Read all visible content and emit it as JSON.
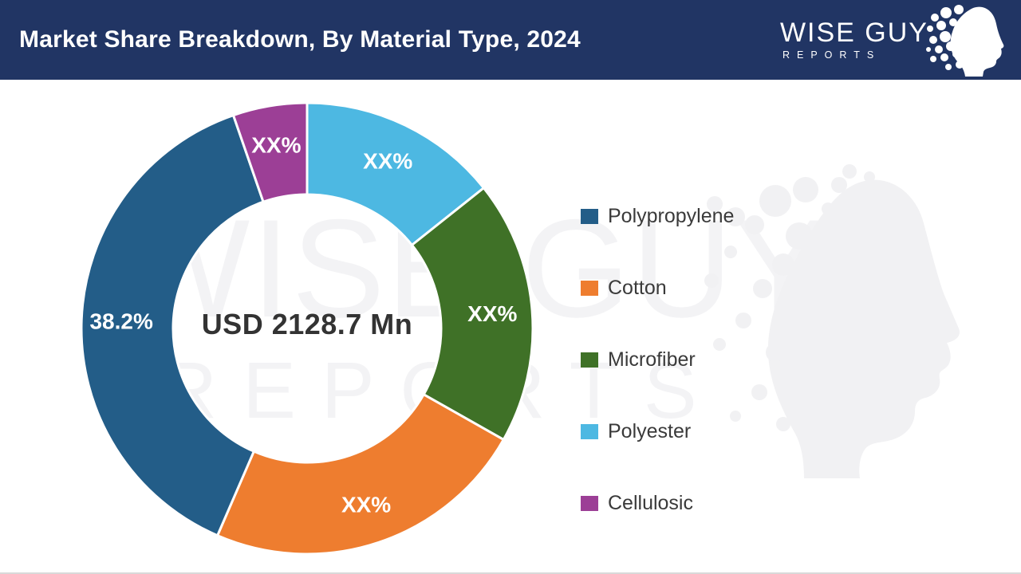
{
  "header": {
    "title": "Market Share Breakdown, By Material Type, 2024",
    "bg_color": "#213564",
    "logo": {
      "name": "WISE GUY",
      "sub": "REPORTS"
    }
  },
  "watermark": {
    "line1": "WISE GUY",
    "line2": "REPORTS"
  },
  "chart_data": {
    "type": "pie",
    "variant": "donut",
    "title": "Market Share Breakdown, By Material Type, 2024",
    "center_text": "USD 2128.7 Mn",
    "legend_position": "right",
    "start_angle_deg": 0,
    "direction": "clockwise",
    "segments": [
      {
        "name": "Polyester",
        "label": "XX%",
        "value_pct": 14.3,
        "color": "#4db8e2"
      },
      {
        "name": "Microfiber",
        "label": "XX%",
        "value_pct": 18.9,
        "color": "#3f7127"
      },
      {
        "name": "Cotton",
        "label": "XX%",
        "value_pct": 23.3,
        "color": "#ee7d2f"
      },
      {
        "name": "Polypropylene",
        "label": "38.2%",
        "value_pct": 38.2,
        "color": "#235d88"
      },
      {
        "name": "Cellulosic",
        "label": "XX%",
        "value_pct": 5.3,
        "color": "#9c3f96"
      }
    ],
    "legend": [
      {
        "label": "Polypropylene",
        "color": "#235d88"
      },
      {
        "label": "Cotton",
        "color": "#ee7d2f"
      },
      {
        "label": "Microfiber",
        "color": "#3f7127"
      },
      {
        "label": "Polyester",
        "color": "#4db8e2"
      },
      {
        "label": "Cellulosic",
        "color": "#9c3f96"
      }
    ]
  }
}
